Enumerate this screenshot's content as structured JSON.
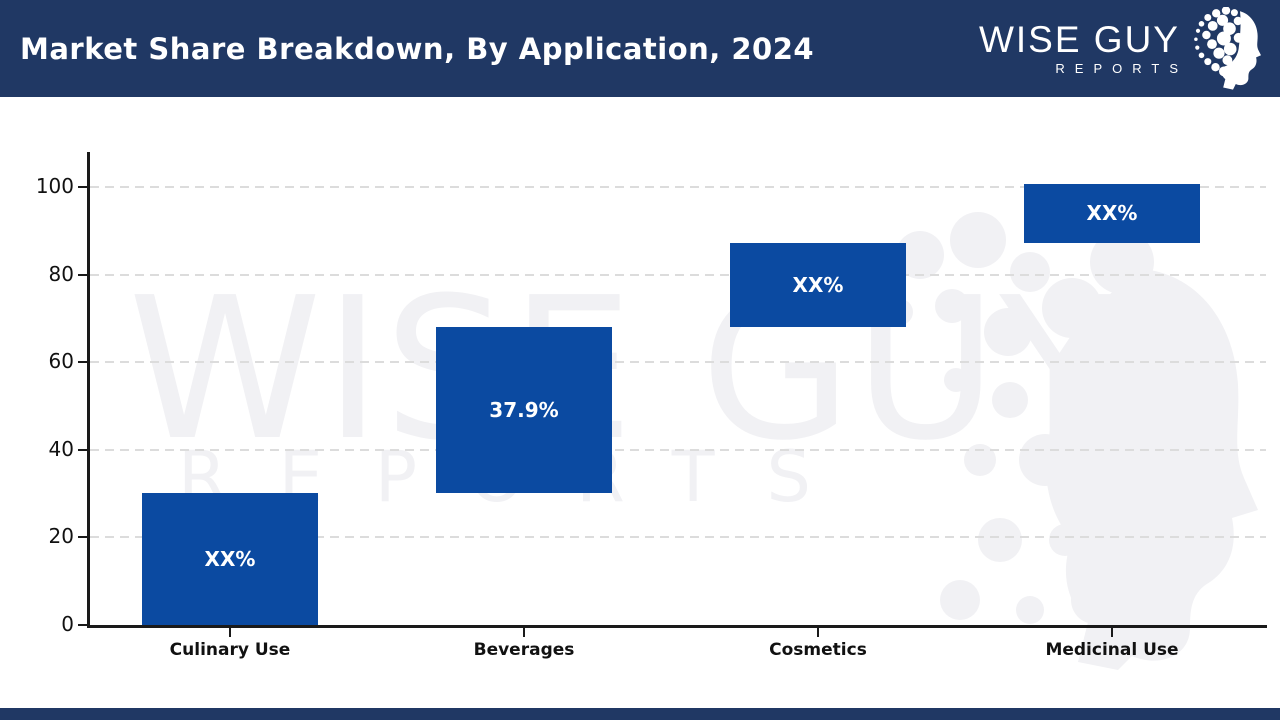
{
  "header": {
    "title": "Market Share Breakdown, By Application, 2024",
    "logo": {
      "line1": "WISE GUY",
      "line2": "REPORTS"
    }
  },
  "watermark": {
    "line1": "WISE GUY",
    "line2": "REPORTS"
  },
  "footer": {},
  "colors": {
    "header_navy": "#203864",
    "bar_blue": "#0b4aa1",
    "watermark_gray": "#f1f1f4",
    "gridline_gray": "#dcdcdc",
    "axis_black": "#1a1a1a",
    "label_white": "#ffffff"
  },
  "chart_data": {
    "type": "bar",
    "subtype": "floating-waterfall",
    "title": "Market Share Breakdown, By Application, 2024",
    "categories": [
      "Culinary Use",
      "Beverages",
      "Cosmetics",
      "Medicinal Use"
    ],
    "segments": [
      {
        "category": "Culinary Use",
        "start": 0,
        "end": 30.1,
        "label": "XX%"
      },
      {
        "category": "Beverages",
        "start": 30.1,
        "end": 68.0,
        "label": "37.9%"
      },
      {
        "category": "Cosmetics",
        "start": 68.0,
        "end": 87.3,
        "label": "XX%"
      },
      {
        "category": "Medicinal Use",
        "start": 87.3,
        "end": 100.7,
        "label": "XX%"
      }
    ],
    "yticks": [
      0,
      20,
      40,
      60,
      80,
      100
    ],
    "ylim": [
      0,
      108
    ],
    "xlabel": "",
    "ylabel": "",
    "grid": "horizontal-dashed",
    "legend": "none"
  }
}
